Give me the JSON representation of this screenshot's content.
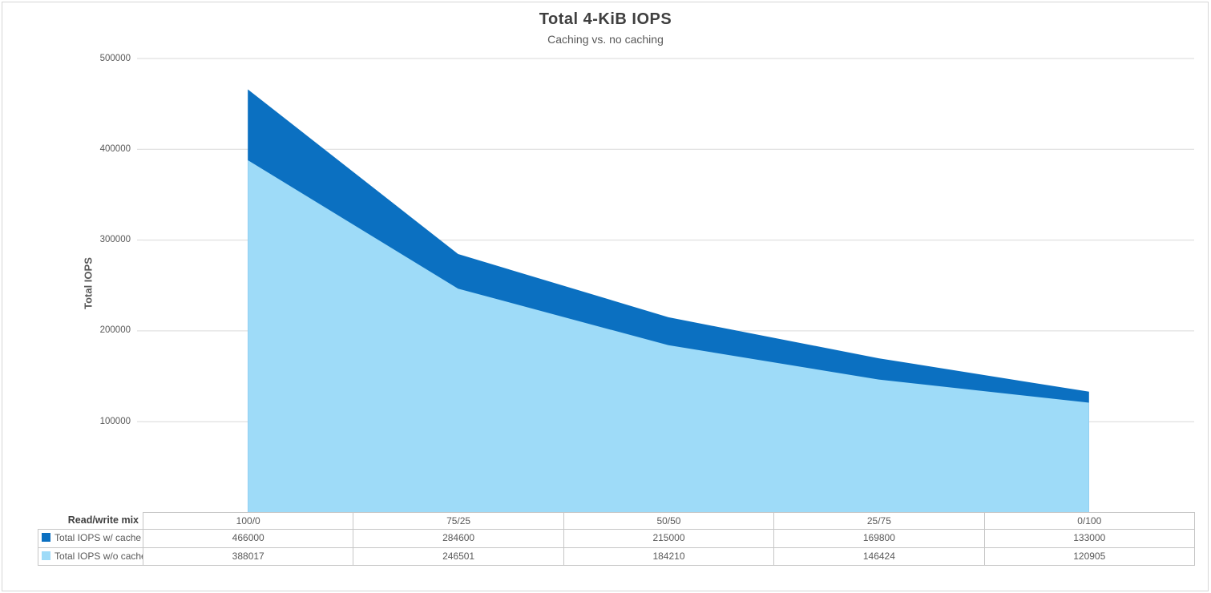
{
  "page": {
    "background": "#ffffff"
  },
  "chart_data": {
    "type": "area",
    "title": "Total 4-KiB IOPS",
    "subtitle": "Caching vs. no caching",
    "xlabel": "Read/write mix",
    "ylabel": "Total IOPS",
    "categories": [
      "100/0",
      "75/25",
      "50/50",
      "25/75",
      "0/100"
    ],
    "series": [
      {
        "name": "Total IOPS w/ cache",
        "color": "#0b70c1",
        "values": [
          466000,
          284600,
          215000,
          169800,
          133000
        ]
      },
      {
        "name": "Total IOPS w/o cache",
        "color": "#9edbf8",
        "values": [
          388017,
          246501,
          184210,
          146424,
          120905
        ]
      }
    ],
    "ylim": [
      0,
      500000
    ],
    "yticks": [
      100000,
      200000,
      300000,
      400000,
      500000
    ],
    "ytick_labels": [
      "100000",
      "200000",
      "300000",
      "400000",
      "500000"
    ],
    "grid": "horizontal",
    "area_mode": "overlap",
    "legend_position": "data-table-rows"
  },
  "colors": {
    "gridline": "#d9d9d9",
    "table_border": "#c6c6c6",
    "title_text": "#3f3f3f",
    "body_text": "#595959"
  }
}
